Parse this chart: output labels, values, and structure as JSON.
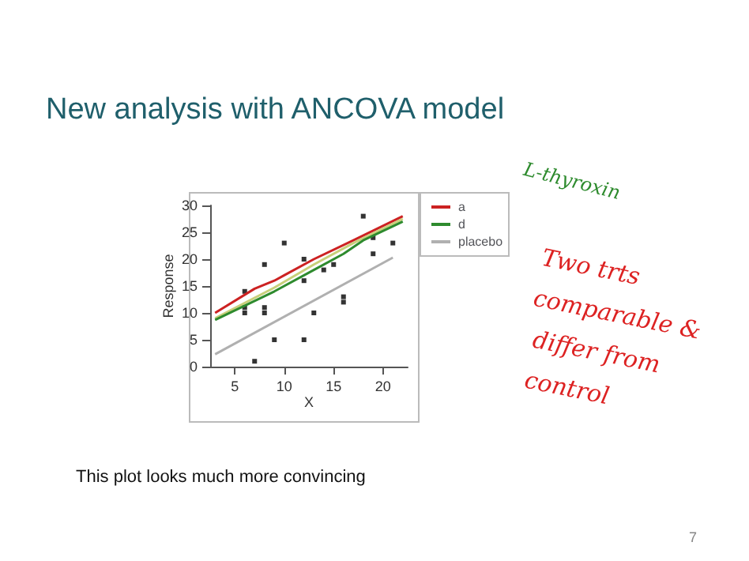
{
  "chart_data": {
    "type": "scatter",
    "title": "New analysis with ANCOVA model",
    "xlabel": "X",
    "ylabel": "Response",
    "xlim": [
      2.5,
      22.5
    ],
    "xticks": [
      5,
      10,
      15,
      20
    ],
    "ylim": [
      0,
      30
    ],
    "yticks": [
      0,
      5,
      10,
      15,
      20,
      25,
      30
    ],
    "grid": false,
    "legend": "right",
    "marker": "square",
    "series": [
      {
        "color": "#000000",
        "x": [
          6,
          6,
          6,
          8,
          8,
          8,
          7,
          9,
          10,
          12,
          12,
          12,
          13,
          14,
          15,
          16,
          16,
          18,
          19,
          19,
          21
        ],
        "values": [
          14,
          11,
          10,
          19,
          11,
          10,
          1,
          5,
          23,
          20,
          16,
          5,
          10,
          18,
          19,
          13,
          12,
          28,
          24,
          21,
          23
        ]
      },
      {
        "type": "line",
        "name": "a",
        "color": "#cc2222",
        "marker": "none",
        "x": [
          3,
          7,
          9,
          10,
          13,
          17,
          22
        ],
        "values": [
          10,
          14.5,
          16,
          17,
          20,
          23.5,
          28
        ]
      },
      {
        "type": "line",
        "color": "#c8d07a",
        "marker": "none",
        "x": [
          3,
          9,
          13,
          17,
          22
        ],
        "values": [
          9,
          14.7,
          19,
          23,
          27.5
        ]
      },
      {
        "type": "line",
        "name": "d",
        "color": "#2e8b2e",
        "marker": "none",
        "x": [
          3,
          9,
          13,
          16,
          18,
          22
        ],
        "values": [
          8.7,
          14,
          18,
          21,
          23.5,
          27
        ]
      },
      {
        "type": "line",
        "name": "placebo",
        "color": "#b0b0b0",
        "marker": "none",
        "x": [
          3,
          21
        ],
        "values": [
          2.3,
          20.3
        ]
      }
    ],
    "annotations": [
      "L-thyroxin",
      "Two trts comparable & differ from control",
      "This plot looks much more convincing",
      "7"
    ]
  }
}
